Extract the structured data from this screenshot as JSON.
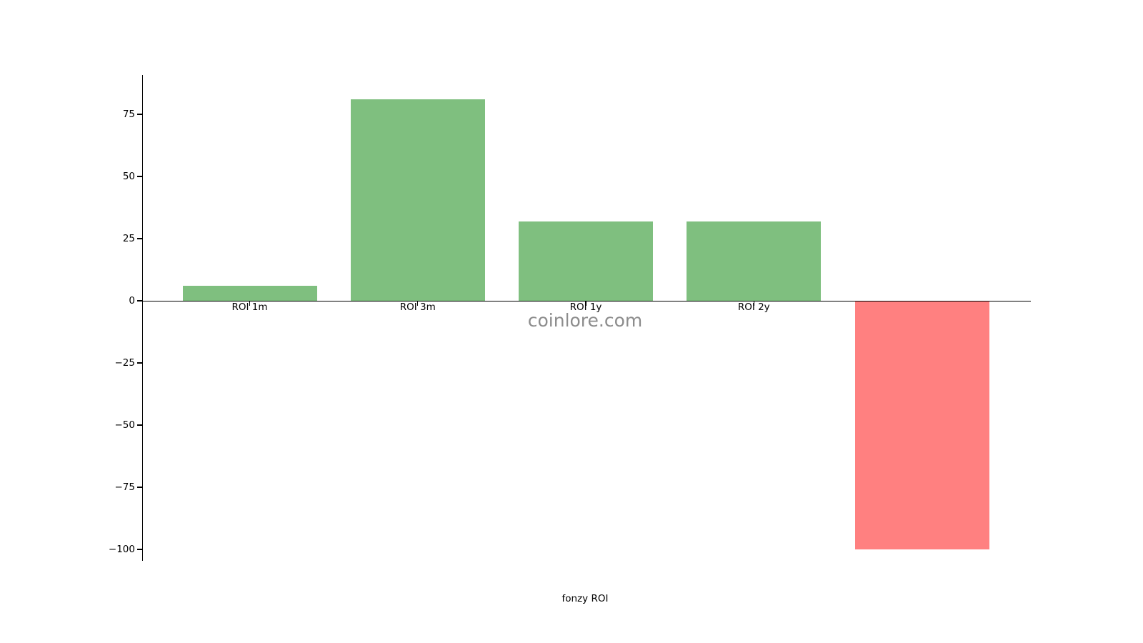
{
  "watermark": "coinlore.com",
  "chart_data": {
    "type": "bar",
    "title": "",
    "xlabel": "fonzy ROI",
    "ylabel": "",
    "categories": [
      "ROI 1m",
      "ROI 3m",
      "ROI 1y",
      "ROI 2y",
      ""
    ],
    "values": [
      6,
      81,
      32,
      32,
      -100
    ],
    "bar_colors": [
      "#7fbf7f",
      "#7fbf7f",
      "#7fbf7f",
      "#7fbf7f",
      "#ff8080"
    ],
    "positive_color": "#7fbf7f",
    "negative_color": "#ff8080",
    "y_ticks": [
      75,
      50,
      25,
      0,
      -25,
      -50,
      -75,
      -100
    ],
    "y_tick_labels": [
      "75",
      "50",
      "25",
      "0",
      "−25",
      "−50",
      "−75",
      "−100"
    ],
    "ylim": [
      -105,
      91
    ],
    "grid": false,
    "legend_position": "none",
    "axis_color": "#000000",
    "watermark": "coinlore.com",
    "watermark_color": "#8c8c8c"
  }
}
